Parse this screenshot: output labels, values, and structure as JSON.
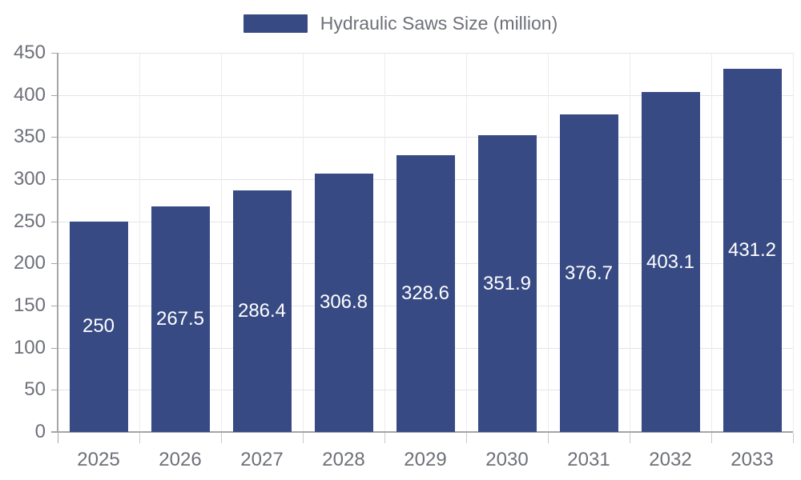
{
  "legend": {
    "label": "Hydraulic Saws Size (million)"
  },
  "chart_data": {
    "type": "bar",
    "title": "Hydraulic Saws Size (million)",
    "legend_entries": [
      "Hydraulic Saws Size (million)"
    ],
    "legend_position": "top-center",
    "categories": [
      "2025",
      "2026",
      "2027",
      "2028",
      "2029",
      "2030",
      "2031",
      "2032",
      "2033"
    ],
    "values": [
      250,
      267.5,
      286.4,
      306.8,
      328.6,
      351.9,
      376.7,
      403.1,
      431.2
    ],
    "value_labels": [
      "250",
      "267.5",
      "286.4",
      "306.8",
      "328.6",
      "351.9",
      "376.7",
      "403.1",
      "431.2"
    ],
    "xlabel": "",
    "ylabel": "",
    "ylim": [
      0,
      450
    ],
    "yticks": [
      0,
      50,
      100,
      150,
      200,
      250,
      300,
      350,
      400,
      450
    ],
    "grid": true,
    "bar_label_position": "inside-center",
    "colors": {
      "bar": "#374a83",
      "bar_label": "#ffffff",
      "axis_text": "#6e7079",
      "legend_text": "#6e7079",
      "axis_line": "#a3a6ab",
      "grid_line_h": "#e4e4e7",
      "grid_line_v": "#ececef",
      "tick_mark_x": "#c7cacd",
      "background": "#ffffff"
    }
  }
}
